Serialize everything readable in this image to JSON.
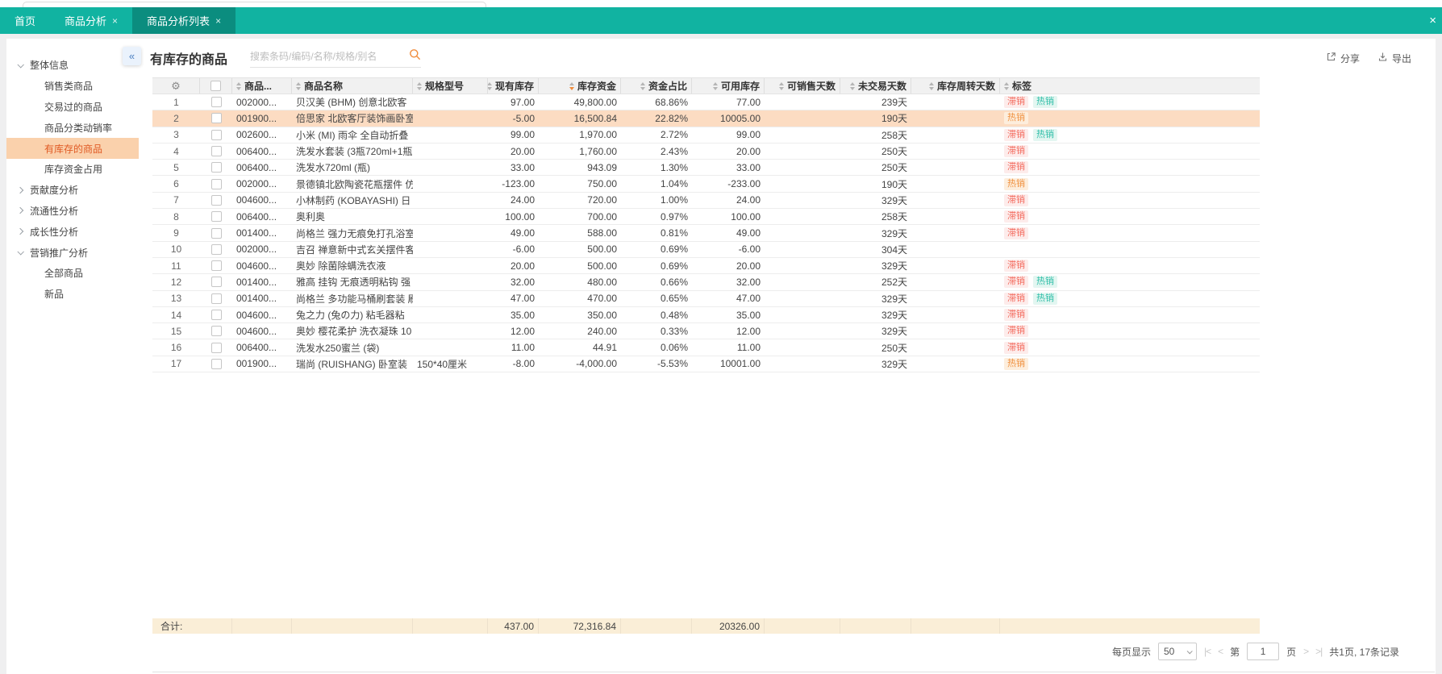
{
  "tabs": [
    {
      "label": "首页",
      "closable": false,
      "active": false
    },
    {
      "label": "商品分析",
      "closable": true,
      "active": false
    },
    {
      "label": "商品分析列表",
      "closable": true,
      "active": true
    }
  ],
  "topbar": {
    "close_icon": "×"
  },
  "sidebar": {
    "collapse_icon": "«",
    "items": [
      {
        "key": "overall-info",
        "label": "整体信息",
        "level": 0,
        "caret": "expanded",
        "selected": false
      },
      {
        "key": "sales-products",
        "label": "销售类商品",
        "level": 1,
        "caret": null,
        "selected": false
      },
      {
        "key": "traded-products",
        "label": "交易过的商品",
        "level": 1,
        "caret": null,
        "selected": false
      },
      {
        "key": "category-sell-rate",
        "label": "商品分类动销率",
        "level": 1,
        "caret": null,
        "selected": false
      },
      {
        "key": "in-stock-products",
        "label": "有库存的商品",
        "level": 1,
        "caret": null,
        "selected": true
      },
      {
        "key": "stock-fund-usage",
        "label": "库存资金占用",
        "level": 1,
        "caret": null,
        "selected": false
      },
      {
        "key": "contribution-analysis",
        "label": "贡献度分析",
        "level": 0,
        "caret": "collapsed",
        "selected": false
      },
      {
        "key": "circulation-analysis",
        "label": "流通性分析",
        "level": 0,
        "caret": "collapsed",
        "selected": false
      },
      {
        "key": "growth-analysis",
        "label": "成长性分析",
        "level": 0,
        "caret": "collapsed",
        "selected": false
      },
      {
        "key": "marketing-analysis",
        "label": "营销推广分析",
        "level": 0,
        "caret": "expanded",
        "selected": false
      },
      {
        "key": "all-products",
        "label": "全部商品",
        "level": 1,
        "caret": null,
        "selected": false
      },
      {
        "key": "new-products",
        "label": "新品",
        "level": 1,
        "caret": null,
        "selected": false
      }
    ]
  },
  "header": {
    "title": "有库存的商品",
    "search_placeholder": "搜索条码/编码/名称/规格/别名",
    "share_label": "分享",
    "export_label": "导出"
  },
  "table": {
    "columns": [
      {
        "label": "商品...",
        "align": "left",
        "sorted": null
      },
      {
        "label": "商品名称",
        "align": "left",
        "sorted": null
      },
      {
        "label": "规格型号",
        "align": "left",
        "sorted": null
      },
      {
        "label": "现有库存",
        "align": "right",
        "sorted": null
      },
      {
        "label": "库存资金",
        "align": "right",
        "sorted": "desc"
      },
      {
        "label": "资金占比",
        "align": "right",
        "sorted": null
      },
      {
        "label": "可用库存",
        "align": "right",
        "sorted": null
      },
      {
        "label": "可销售天数",
        "align": "right",
        "sorted": null
      },
      {
        "label": "未交易天数",
        "align": "right",
        "sorted": null
      },
      {
        "label": "库存周转天数",
        "align": "right",
        "sorted": null
      },
      {
        "label": "标签",
        "align": "left",
        "sorted": null
      }
    ],
    "rows": [
      {
        "index": "1",
        "code": "002000...",
        "name": "贝汉美 (BHM) 创意北欧客",
        "spec": "",
        "stock": "97.00",
        "fund": "49,800.00",
        "ratio": "68.86%",
        "available": "77.00",
        "sellable_days": "",
        "no_trade_days": "239天",
        "turnover_days": "",
        "highlight": false,
        "tags": [
          {
            "text": "滞销",
            "type": "stagnant"
          },
          {
            "text": "热销",
            "type": "hot-teal"
          }
        ]
      },
      {
        "index": "2",
        "code": "001900...",
        "name": "倍思家 北欧客厅装饰画卧室",
        "spec": "",
        "stock": "-5.00",
        "fund": "16,500.84",
        "ratio": "22.82%",
        "available": "10005.00",
        "sellable_days": "",
        "no_trade_days": "190天",
        "turnover_days": "",
        "highlight": true,
        "tags": [
          {
            "text": "热销",
            "type": "hot-orange"
          }
        ]
      },
      {
        "index": "3",
        "code": "002600...",
        "name": "小米 (MI) 雨伞 全自动折叠",
        "spec": "",
        "stock": "99.00",
        "fund": "1,970.00",
        "ratio": "2.72%",
        "available": "99.00",
        "sellable_days": "",
        "no_trade_days": "258天",
        "turnover_days": "",
        "highlight": false,
        "tags": [
          {
            "text": "滞销",
            "type": "stagnant"
          },
          {
            "text": "热销",
            "type": "hot-teal"
          }
        ]
      },
      {
        "index": "4",
        "code": "006400...",
        "name": "洗发水套装 (3瓶720ml+1瓶",
        "spec": "",
        "stock": "20.00",
        "fund": "1,760.00",
        "ratio": "2.43%",
        "available": "20.00",
        "sellable_days": "",
        "no_trade_days": "250天",
        "turnover_days": "",
        "highlight": false,
        "tags": [
          {
            "text": "滞销",
            "type": "stagnant"
          }
        ]
      },
      {
        "index": "5",
        "code": "006400...",
        "name": "洗发水720ml (瓶)",
        "spec": "",
        "stock": "33.00",
        "fund": "943.09",
        "ratio": "1.30%",
        "available": "33.00",
        "sellable_days": "",
        "no_trade_days": "250天",
        "turnover_days": "",
        "highlight": false,
        "tags": [
          {
            "text": "滞销",
            "type": "stagnant"
          }
        ]
      },
      {
        "index": "6",
        "code": "002000...",
        "name": "景德镇北欧陶瓷花瓶摆件 仿",
        "spec": "",
        "stock": "-123.00",
        "fund": "750.00",
        "ratio": "1.04%",
        "available": "-233.00",
        "sellable_days": "",
        "no_trade_days": "190天",
        "turnover_days": "",
        "highlight": false,
        "tags": [
          {
            "text": "热销",
            "type": "hot-orange"
          }
        ]
      },
      {
        "index": "7",
        "code": "004600...",
        "name": "小林制药 (KOBAYASHI) 日",
        "spec": "",
        "stock": "24.00",
        "fund": "720.00",
        "ratio": "1.00%",
        "available": "24.00",
        "sellable_days": "",
        "no_trade_days": "329天",
        "turnover_days": "",
        "highlight": false,
        "tags": [
          {
            "text": "滞销",
            "type": "stagnant"
          }
        ]
      },
      {
        "index": "8",
        "code": "006400...",
        "name": "奥利奥",
        "spec": "",
        "stock": "100.00",
        "fund": "700.00",
        "ratio": "0.97%",
        "available": "100.00",
        "sellable_days": "",
        "no_trade_days": "258天",
        "turnover_days": "",
        "highlight": false,
        "tags": [
          {
            "text": "滞销",
            "type": "stagnant"
          }
        ]
      },
      {
        "index": "9",
        "code": "001400...",
        "name": "尚格兰 强力无痕免打孔浴室",
        "spec": "",
        "stock": "49.00",
        "fund": "588.00",
        "ratio": "0.81%",
        "available": "49.00",
        "sellable_days": "",
        "no_trade_days": "329天",
        "turnover_days": "",
        "highlight": false,
        "tags": [
          {
            "text": "滞销",
            "type": "stagnant"
          }
        ]
      },
      {
        "index": "10",
        "code": "002000...",
        "name": "吉召 禅意新中式玄关摆件客",
        "spec": "",
        "stock": "-6.00",
        "fund": "500.00",
        "ratio": "0.69%",
        "available": "-6.00",
        "sellable_days": "",
        "no_trade_days": "304天",
        "turnover_days": "",
        "highlight": false,
        "tags": []
      },
      {
        "index": "11",
        "code": "004600...",
        "name": "奥妙 除菌除螨洗衣液",
        "spec": "",
        "stock": "20.00",
        "fund": "500.00",
        "ratio": "0.69%",
        "available": "20.00",
        "sellable_days": "",
        "no_trade_days": "329天",
        "turnover_days": "",
        "highlight": false,
        "tags": [
          {
            "text": "滞销",
            "type": "stagnant"
          }
        ]
      },
      {
        "index": "12",
        "code": "001400...",
        "name": "雅高 挂钩 无痕透明粘钩 强",
        "spec": "",
        "stock": "32.00",
        "fund": "480.00",
        "ratio": "0.66%",
        "available": "32.00",
        "sellable_days": "",
        "no_trade_days": "252天",
        "turnover_days": "",
        "highlight": false,
        "tags": [
          {
            "text": "滞销",
            "type": "stagnant"
          },
          {
            "text": "热销",
            "type": "hot-teal"
          }
        ]
      },
      {
        "index": "13",
        "code": "001400...",
        "name": "尚格兰 多功能马桶刷套装 刷",
        "spec": "",
        "stock": "47.00",
        "fund": "470.00",
        "ratio": "0.65%",
        "available": "47.00",
        "sellable_days": "",
        "no_trade_days": "329天",
        "turnover_days": "",
        "highlight": false,
        "tags": [
          {
            "text": "滞销",
            "type": "stagnant"
          },
          {
            "text": "热销",
            "type": "hot-teal"
          }
        ]
      },
      {
        "index": "14",
        "code": "004600...",
        "name": "兔之力 (兔の力) 粘毛器粘",
        "spec": "",
        "stock": "35.00",
        "fund": "350.00",
        "ratio": "0.48%",
        "available": "35.00",
        "sellable_days": "",
        "no_trade_days": "329天",
        "turnover_days": "",
        "highlight": false,
        "tags": [
          {
            "text": "滞销",
            "type": "stagnant"
          }
        ]
      },
      {
        "index": "15",
        "code": "004600...",
        "name": "奥妙 樱花柔护 洗衣凝珠 10",
        "spec": "",
        "stock": "12.00",
        "fund": "240.00",
        "ratio": "0.33%",
        "available": "12.00",
        "sellable_days": "",
        "no_trade_days": "329天",
        "turnover_days": "",
        "highlight": false,
        "tags": [
          {
            "text": "滞销",
            "type": "stagnant"
          }
        ]
      },
      {
        "index": "16",
        "code": "006400...",
        "name": "洗发水250蜜兰 (袋)",
        "spec": "",
        "stock": "11.00",
        "fund": "44.91",
        "ratio": "0.06%",
        "available": "11.00",
        "sellable_days": "",
        "no_trade_days": "250天",
        "turnover_days": "",
        "highlight": false,
        "tags": [
          {
            "text": "滞销",
            "type": "stagnant"
          }
        ]
      },
      {
        "index": "17",
        "code": "001900...",
        "name": "瑞尚 (RUISHANG) 卧室装",
        "spec": "150*40厘米",
        "stock": "-8.00",
        "fund": "-4,000.00",
        "ratio": "-5.53%",
        "available": "10001.00",
        "sellable_days": "",
        "no_trade_days": "329天",
        "turnover_days": "",
        "highlight": false,
        "tags": [
          {
            "text": "热销",
            "type": "hot-orange"
          }
        ]
      }
    ],
    "totals": {
      "label": "合计:",
      "stock": "437.00",
      "fund": "72,316.84",
      "available": "20326.00"
    }
  },
  "pagination": {
    "per_page_label": "每页显示",
    "per_page_value": "50",
    "first_icon": "|<",
    "prev_icon": "<",
    "page_prefix": "第",
    "page_value": "1",
    "page_suffix": "页",
    "next_icon": ">",
    "last_icon": ">|",
    "summary": "共1页, 17条记录"
  },
  "colors": {
    "topbar": "#11b3a1",
    "topbar_active_tab": "#0b8d7f",
    "sidebar_selected_bg": "#fad1ac",
    "sidebar_selected_text": "#e05a24",
    "row_highlight_bg": "#fcdcc2",
    "totals_bg": "#faeed7",
    "accent_orange": "#f08c3c",
    "tag_stagnant": "#f3695c",
    "tag_hot_teal": "#2fbea8",
    "tag_hot_orange": "#f0903e"
  }
}
